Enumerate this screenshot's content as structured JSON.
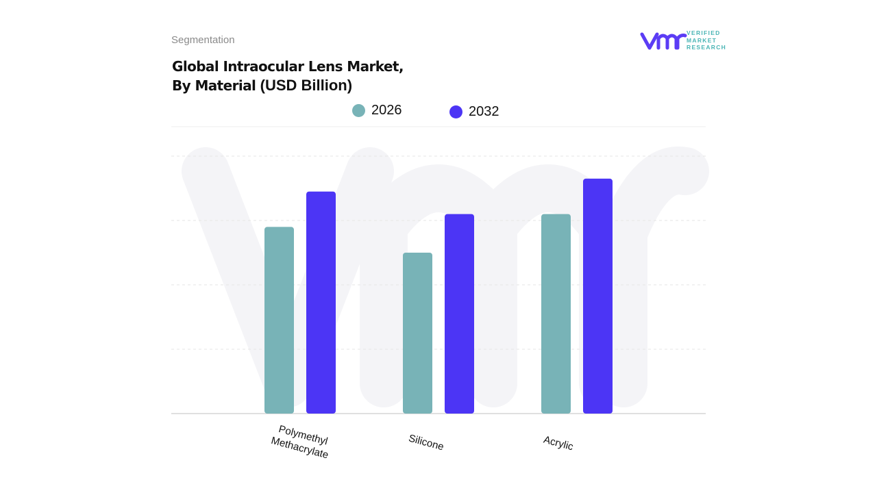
{
  "header": {
    "section": "Segmentation",
    "title_line1": "Global Intraocular Lens Market,",
    "title_line2": "By Material",
    "title_unit": "(USD Billion)"
  },
  "logo": {
    "mark": "vmr",
    "text": [
      "VERIFIED",
      "MARKET",
      "RESEARCH"
    ],
    "color_mark": "#5b3cf5",
    "color_text": "#4ab5b5"
  },
  "chart_data": {
    "type": "bar",
    "title": "Global Intraocular Lens Market, By Material (USD Billion)",
    "categories": [
      "Polymethyl Methacrylate",
      "Silicone",
      "Acrylic"
    ],
    "series": [
      {
        "name": "2026",
        "color": "#78b3b7",
        "values": [
          2.9,
          2.5,
          3.1
        ]
      },
      {
        "name": "2032",
        "color": "#4c35f5",
        "values": [
          3.45,
          3.1,
          3.65
        ]
      }
    ],
    "ylim": [
      0,
      4
    ],
    "grid": true,
    "legend": "top-center",
    "xlabel": "",
    "ylabel": ""
  }
}
